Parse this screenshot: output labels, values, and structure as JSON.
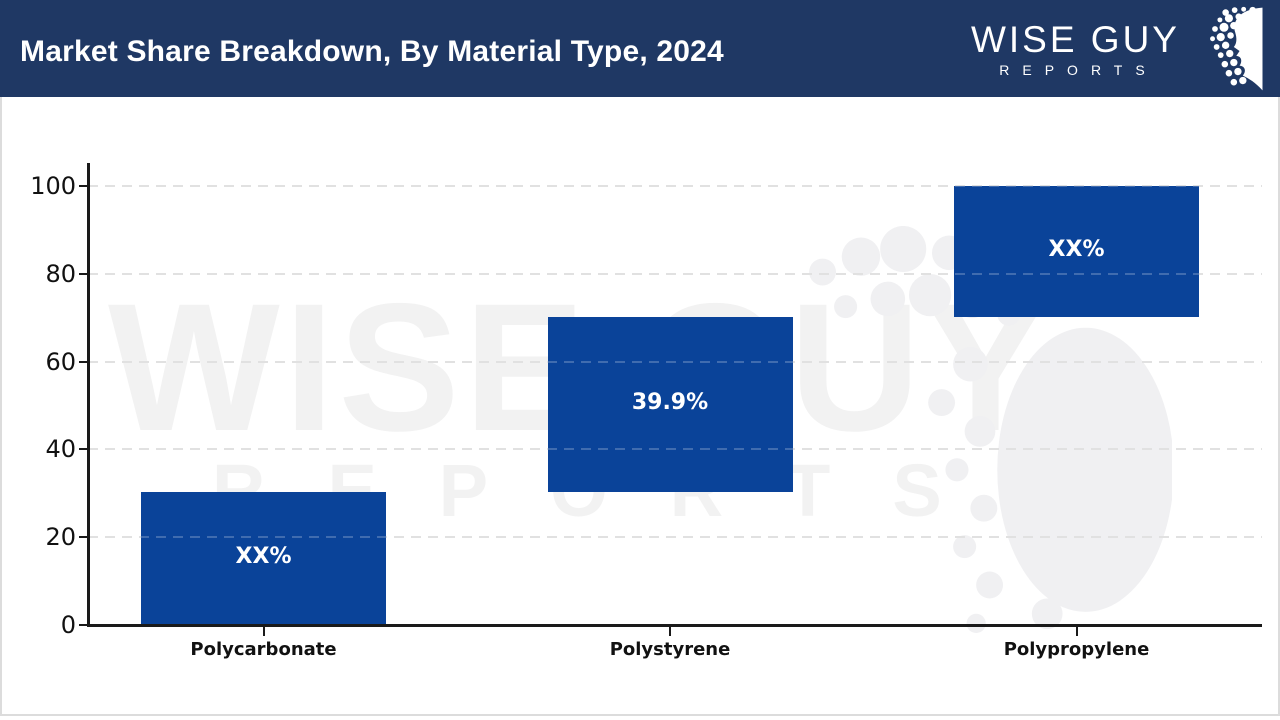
{
  "header": {
    "title": "Market Share Breakdown, By Material Type, 2024",
    "logo": {
      "line1": "WISE GUY",
      "line2": "REPORTS"
    }
  },
  "watermark": {
    "line1": "WISE GUY",
    "line2": "REPORTS"
  },
  "chart_data": {
    "type": "bar",
    "subtype": "floating-stacked-percentage",
    "title": "Market Share Breakdown, By Material Type, 2024",
    "categories": [
      "Polycarbonate",
      "Polystyrene",
      "Polypropylene"
    ],
    "series": [
      {
        "name": "Market Share",
        "segments": [
          {
            "category": "Polycarbonate",
            "from": 0,
            "to": 30.2,
            "label": "XX%"
          },
          {
            "category": "Polystyrene",
            "from": 30.2,
            "to": 70.1,
            "label": "39.9%"
          },
          {
            "category": "Polypropylene",
            "from": 70.1,
            "to": 100,
            "label": "XX%"
          }
        ]
      }
    ],
    "bar_labels": [
      "XX%",
      "39.9%",
      "XX%"
    ],
    "xlabel": "",
    "ylabel": "",
    "ylim": [
      0,
      100
    ],
    "yticks": [
      0,
      20,
      40,
      60,
      80,
      100
    ],
    "grid": "horizontal-dashed",
    "legend": "none",
    "colors": {
      "bar": "#0a4399",
      "header": "#1f3864",
      "axis": "#1a1a1a",
      "grid": "#d9d9d9",
      "watermark": "#f2f2f2",
      "label_text": "#ffffff"
    }
  }
}
